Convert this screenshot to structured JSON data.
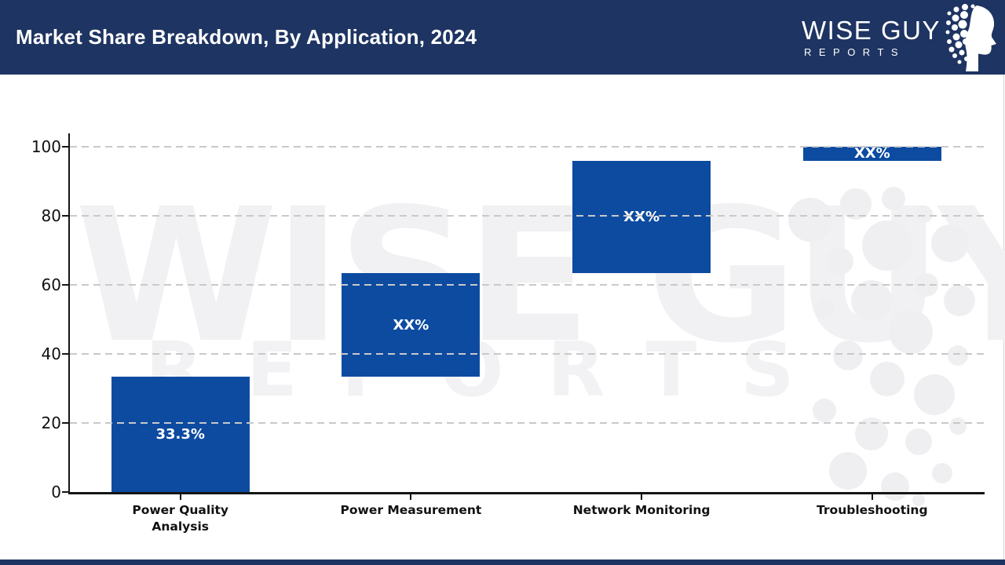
{
  "header": {
    "title": "Market Share Breakdown, By Application, 2024",
    "logo": {
      "line1": "WISE GUY",
      "line2": "REPORTS"
    }
  },
  "watermark": {
    "line1": "WISE GUY",
    "line2": "REPORTS"
  },
  "footer": {},
  "chart_data": {
    "type": "bar",
    "subtype": "waterfall-stacked",
    "title": "Market Share Breakdown, By Application, 2024",
    "categories": [
      "Power Quality\nAnalysis",
      "Power Measurement",
      "Network Monitoring",
      "Troubleshooting"
    ],
    "segments": [
      {
        "category": "Power Quality Analysis",
        "start": 0,
        "end": 33.3,
        "label": "33.3%"
      },
      {
        "category": "Power Measurement",
        "start": 33.3,
        "end": 63.3,
        "label": "XX%"
      },
      {
        "category": "Network Monitoring",
        "start": 63.3,
        "end": 96,
        "label": "XX%"
      },
      {
        "category": "Troubleshooting",
        "start": 96,
        "end": 100,
        "label": "XX%"
      }
    ],
    "y_ticks": [
      0,
      20,
      40,
      60,
      80,
      100
    ],
    "ylim": [
      0,
      100
    ],
    "xlabel": "",
    "ylabel": "",
    "grid": "horizontal-dashed",
    "legend": "none",
    "bar_color": "#0d4ba1",
    "bar_label_color": "#ffffff"
  },
  "colors": {
    "header_bg": "#1e3462",
    "footer_bg": "#1e3462",
    "bar": "#0d4ba1",
    "grid": "#c9c9c9",
    "axis": "#151515",
    "watermark": "#f1f1f3",
    "title_text": "#ffffff"
  }
}
